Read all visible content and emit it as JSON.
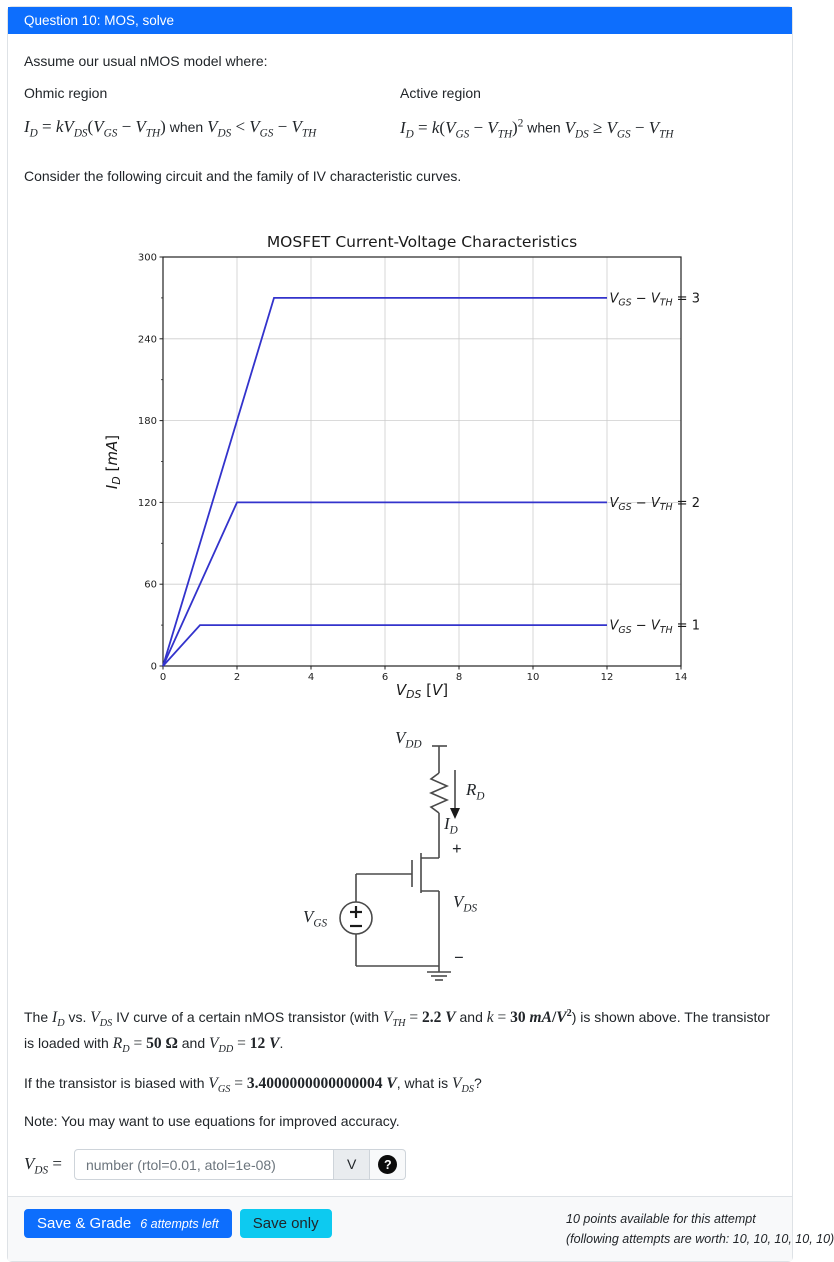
{
  "header": {
    "title": "Question 10: MOS, solve"
  },
  "intro": "Assume our usual nMOS model where:",
  "regions": {
    "left_title": "Ohmic region",
    "right_title": "Active region",
    "left_eq": [
      {
        "m": "I_{D} = kV_{DS}(V_{GS} − V_{TH})"
      },
      {
        "t": " when "
      },
      {
        "m": "V_{DS} < V_{GS} − V_{TH}"
      }
    ],
    "right_eq": [
      {
        "m": "I_{D} = k(V_{GS} − V_{TH})^{2}"
      },
      {
        "t": " when "
      },
      {
        "m": "V_{DS} ≥ V_{GS} − V_{TH}"
      }
    ]
  },
  "consider": "Consider the following circuit and the family of IV characteristic curves.",
  "chart_data": {
    "type": "line",
    "title": "MOSFET Current-Voltage Characteristics",
    "xlabel": "V_{DS} [V]",
    "ylabel": "I_{D} [mA]",
    "xlim": [
      0,
      14
    ],
    "ylim": [
      0,
      300
    ],
    "xticks": [
      0,
      2,
      4,
      6,
      8,
      10,
      12,
      14
    ],
    "yticks": [
      0,
      60,
      120,
      180,
      240,
      300
    ],
    "grid": true,
    "legend_position": "right-end-labels",
    "line_color": "#3333cc",
    "series": [
      {
        "name": "V_{GS} − V_{TH} = 3",
        "x": [
          0,
          3,
          12
        ],
        "y": [
          0,
          270,
          270
        ]
      },
      {
        "name": "V_{GS} − V_{TH} = 2",
        "x": [
          0,
          2,
          12
        ],
        "y": [
          0,
          120,
          120
        ]
      },
      {
        "name": "V_{GS} − V_{TH} = 1",
        "x": [
          0,
          1,
          12
        ],
        "y": [
          0,
          30,
          30
        ]
      }
    ]
  },
  "circuit": {
    "vdd": [
      {
        "m": "V_{DD}"
      }
    ],
    "rd": [
      {
        "m": "R_{D}"
      }
    ],
    "id": [
      {
        "m": "I_{D}"
      }
    ],
    "plus": [
      {
        "m": "*+*"
      }
    ],
    "vds": [
      {
        "m": "V_{DS}"
      }
    ],
    "minus": [
      {
        "m": "*−*"
      }
    ],
    "vgs": [
      {
        "m": "V_{GS}"
      }
    ]
  },
  "paragraph": [
    {
      "t": "The "
    },
    {
      "m": "I_{D}"
    },
    {
      "t": " vs. "
    },
    {
      "m": "V_{DS}"
    },
    {
      "t": " IV curve of a certain nMOS transistor (with "
    },
    {
      "m": "V_{TH} = *2.2 V*"
    },
    {
      "t": " and "
    },
    {
      "m": "k = *30 mA/V^{2}*"
    },
    {
      "t": ") is shown above. The transistor is loaded with "
    },
    {
      "m": "R_{D} = *50 Ω*"
    },
    {
      "t": " and "
    },
    {
      "m": "V_{DD} = *12 V*"
    },
    {
      "t": "."
    }
  ],
  "question": [
    {
      "t": "If the transistor is biased with "
    },
    {
      "m": "V_{GS} = *3.4000000000000004 V*"
    },
    {
      "t": ", what is "
    },
    {
      "m": "V_{DS}"
    },
    {
      "t": "?"
    }
  ],
  "note": "Note: You may want to use equations for improved accuracy.",
  "answer": {
    "label": [
      {
        "m": "V_{DS} ="
      }
    ],
    "value": "",
    "placeholder": "number (rtol=0.01, atol=1e-08)",
    "unit": "V",
    "help": "?"
  },
  "footer": {
    "save_grade": "Save & Grade",
    "attempts": "6 attempts left",
    "save_only": "Save only",
    "points_line1": "10 points available for this attempt",
    "points_line2": "(following attempts are worth: 10, 10, 10, 10, 10)"
  },
  "colors": {
    "primary_blue": "#0d6efd",
    "info_cyan": "#0dcaf0",
    "chart_line_blue": "#3333cc"
  }
}
